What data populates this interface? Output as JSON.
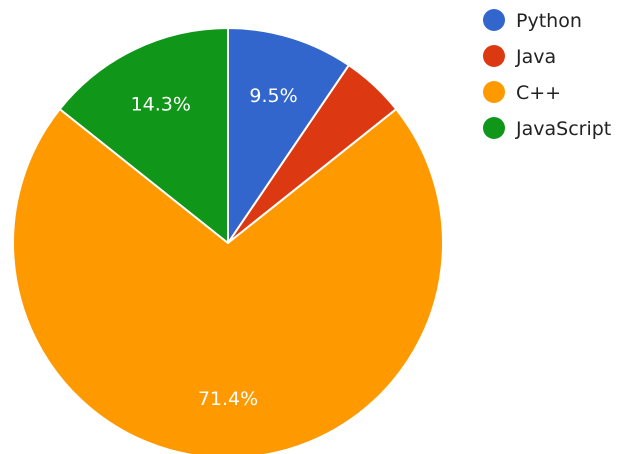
{
  "chart_data": {
    "type": "pie",
    "title": "",
    "start_angle_deg": 0,
    "direction": "clockwise",
    "legend_position": "top-right",
    "slices": [
      {
        "name": "Python",
        "value": 9.5,
        "label": "9.5%",
        "color": "#3366cc",
        "show_label": true
      },
      {
        "name": "Java",
        "value": 4.8,
        "label": "4.8%",
        "color": "#dc3912",
        "show_label": false
      },
      {
        "name": "C++",
        "value": 71.4,
        "label": "71.4%",
        "color": "#ff9900",
        "show_label": true
      },
      {
        "name": "JavaScript",
        "value": 14.3,
        "label": "14.3%",
        "color": "#109618",
        "show_label": true
      }
    ]
  }
}
